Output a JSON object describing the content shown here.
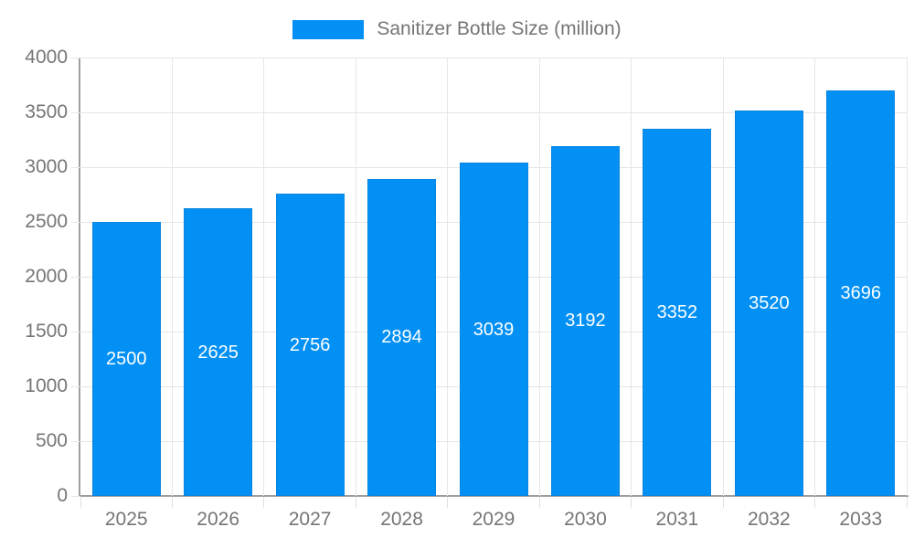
{
  "chart_data": {
    "type": "bar",
    "title": "Sanitizer Bottle Size (million)",
    "legend": {
      "position": "top",
      "entries": [
        "Sanitizer Bottle Size (million)"
      ]
    },
    "categories": [
      "2025",
      "2026",
      "2027",
      "2028",
      "2029",
      "2030",
      "2031",
      "2032",
      "2033"
    ],
    "series": [
      {
        "name": "Sanitizer Bottle Size (million)",
        "values": [
          2500,
          2625,
          2756,
          2894,
          3039,
          3192,
          3352,
          3520,
          3696
        ]
      }
    ],
    "value_labels": [
      "2500",
      "2625",
      "2756",
      "2894",
      "3039",
      "3192",
      "3352",
      "3520",
      "3696"
    ],
    "xlabel": "",
    "ylabel": "",
    "ylim": [
      0,
      4000
    ],
    "ytick_step": 500,
    "ytick_labels": [
      "0",
      "500",
      "1000",
      "1500",
      "2000",
      "2500",
      "3000",
      "3500",
      "4000"
    ],
    "grid": true,
    "colors": {
      "bar_fill": "#0290f5",
      "bar_edge": "#0a85e0",
      "value_label_text": "#ffffff",
      "axis_text": "#757575",
      "gridline": "#e6e6e6",
      "axis_line": "#9e9e9e",
      "background": "#ffffff"
    }
  }
}
